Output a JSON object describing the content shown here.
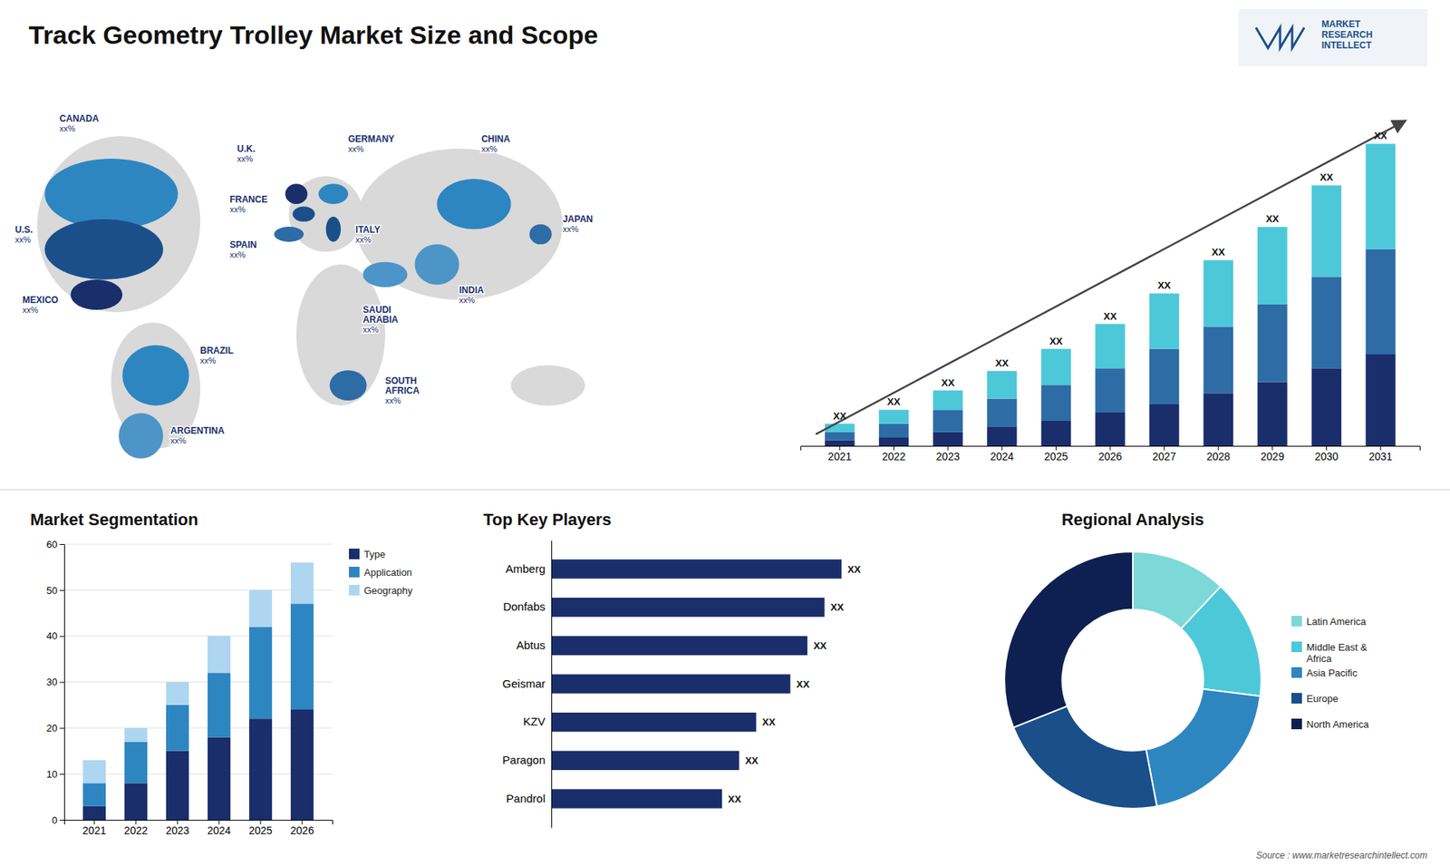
{
  "chart_data": [
    {
      "type": "map",
      "title": "Track Geometry Trolley Market Size and Scope",
      "categories": [
        "CANADA",
        "U.S.",
        "MEXICO",
        "BRAZIL",
        "ARGENTINA",
        "U.K.",
        "FRANCE",
        "SPAIN",
        "GERMANY",
        "ITALY",
        "SAUDI\nARABIA",
        "SOUTH\nAFRICA",
        "CHINA",
        "INDIA",
        "JAPAN"
      ],
      "colors": [
        "#2e86c1",
        "#1a4f8a",
        "#1a2e6b",
        "#2e86c1",
        "#4d94c8",
        "#1a2e6b",
        "#1a4f8a",
        "#2e6ca6",
        "#2e86c1",
        "#1a4f8a",
        "#4d94c8",
        "#2e6ca6",
        "#2e86c1",
        "#4d94c8",
        "#2e6ca6"
      ],
      "value_labels": [
        "xx%",
        "xx%",
        "xx%",
        "xx%",
        "xx%",
        "xx%",
        "xx%",
        "xx%",
        "xx%",
        "xx%",
        "xx%",
        "xx%",
        "xx%",
        "xx%",
        "xx%"
      ],
      "annotations": [
        "MARKET\nRESEARCH\nINTELLECT",
        "Source : www.marketresearchintellect.com"
      ]
    },
    {
      "type": "bar",
      "stacked": true,
      "categories": [
        "2021",
        "2022",
        "2023",
        "2024",
        "2025",
        "2026",
        "2027",
        "2028",
        "2029",
        "2030",
        "2031"
      ],
      "series": [
        {
          "color": "#1a2e6b",
          "values": [
            2,
            3,
            5,
            7,
            9,
            12,
            15,
            19,
            23,
            28,
            33
          ]
        },
        {
          "color": "#2e6ca6",
          "values": [
            3,
            5,
            8,
            10,
            13,
            16,
            20,
            24,
            28,
            33,
            38
          ]
        },
        {
          "color": "#4dc8d8",
          "values": [
            3,
            5,
            7,
            10,
            13,
            16,
            20,
            24,
            28,
            33,
            38
          ]
        }
      ],
      "ylim": [
        0,
        120
      ],
      "tick_labels": "x",
      "grid": false,
      "annotations": [
        "XX",
        "XX",
        "XX",
        "XX",
        "XX",
        "XX",
        "XX",
        "XX",
        "XX",
        "XX",
        "XX"
      ]
    },
    {
      "type": "bar",
      "stacked": true,
      "title": "Market Segmentation",
      "categories": [
        "2021",
        "2022",
        "2023",
        "2024",
        "2025",
        "2026"
      ],
      "series": [
        {
          "name": "Type",
          "color": "#1a2e6b",
          "values": [
            3,
            8,
            15,
            18,
            22,
            24
          ]
        },
        {
          "name": "Application",
          "color": "#2e86c1",
          "values": [
            5,
            9,
            10,
            14,
            20,
            23
          ]
        },
        {
          "name": "Geography",
          "color": "#aed6f1",
          "values": [
            5,
            3,
            5,
            8,
            8,
            9
          ]
        }
      ],
      "ylim": [
        0,
        60
      ],
      "yticks": [
        0,
        10,
        20,
        30,
        40,
        50,
        60
      ],
      "grid": true,
      "legend": "right"
    },
    {
      "type": "bar",
      "orientation": "horizontal",
      "title": "Top Key Players",
      "categories": [
        "Amberg",
        "Donfabs",
        "Abtus",
        "Geismar",
        "KZV",
        "Paragon",
        "Pandrol"
      ],
      "values": [
        0.85,
        0.8,
        0.75,
        0.7,
        0.6,
        0.55,
        0.5
      ],
      "color": "#1a2e6b",
      "xlim": [
        0,
        1.15
      ],
      "tick_labels": "y",
      "annotations": [
        "XX",
        "XX",
        "XX",
        "XX",
        "XX",
        "XX",
        "XX"
      ]
    },
    {
      "type": "donut",
      "title": "Regional Analysis",
      "categories": [
        "Latin America",
        "Middle East &\nAfrica",
        "Asia Pacific",
        "Europe",
        "North America"
      ],
      "values": [
        12,
        15,
        20,
        22,
        31
      ],
      "colors": [
        "#7dd8d8",
        "#4dc8d8",
        "#2e86c1",
        "#1a4f8a",
        "#0e2052"
      ],
      "legend": "right"
    }
  ]
}
